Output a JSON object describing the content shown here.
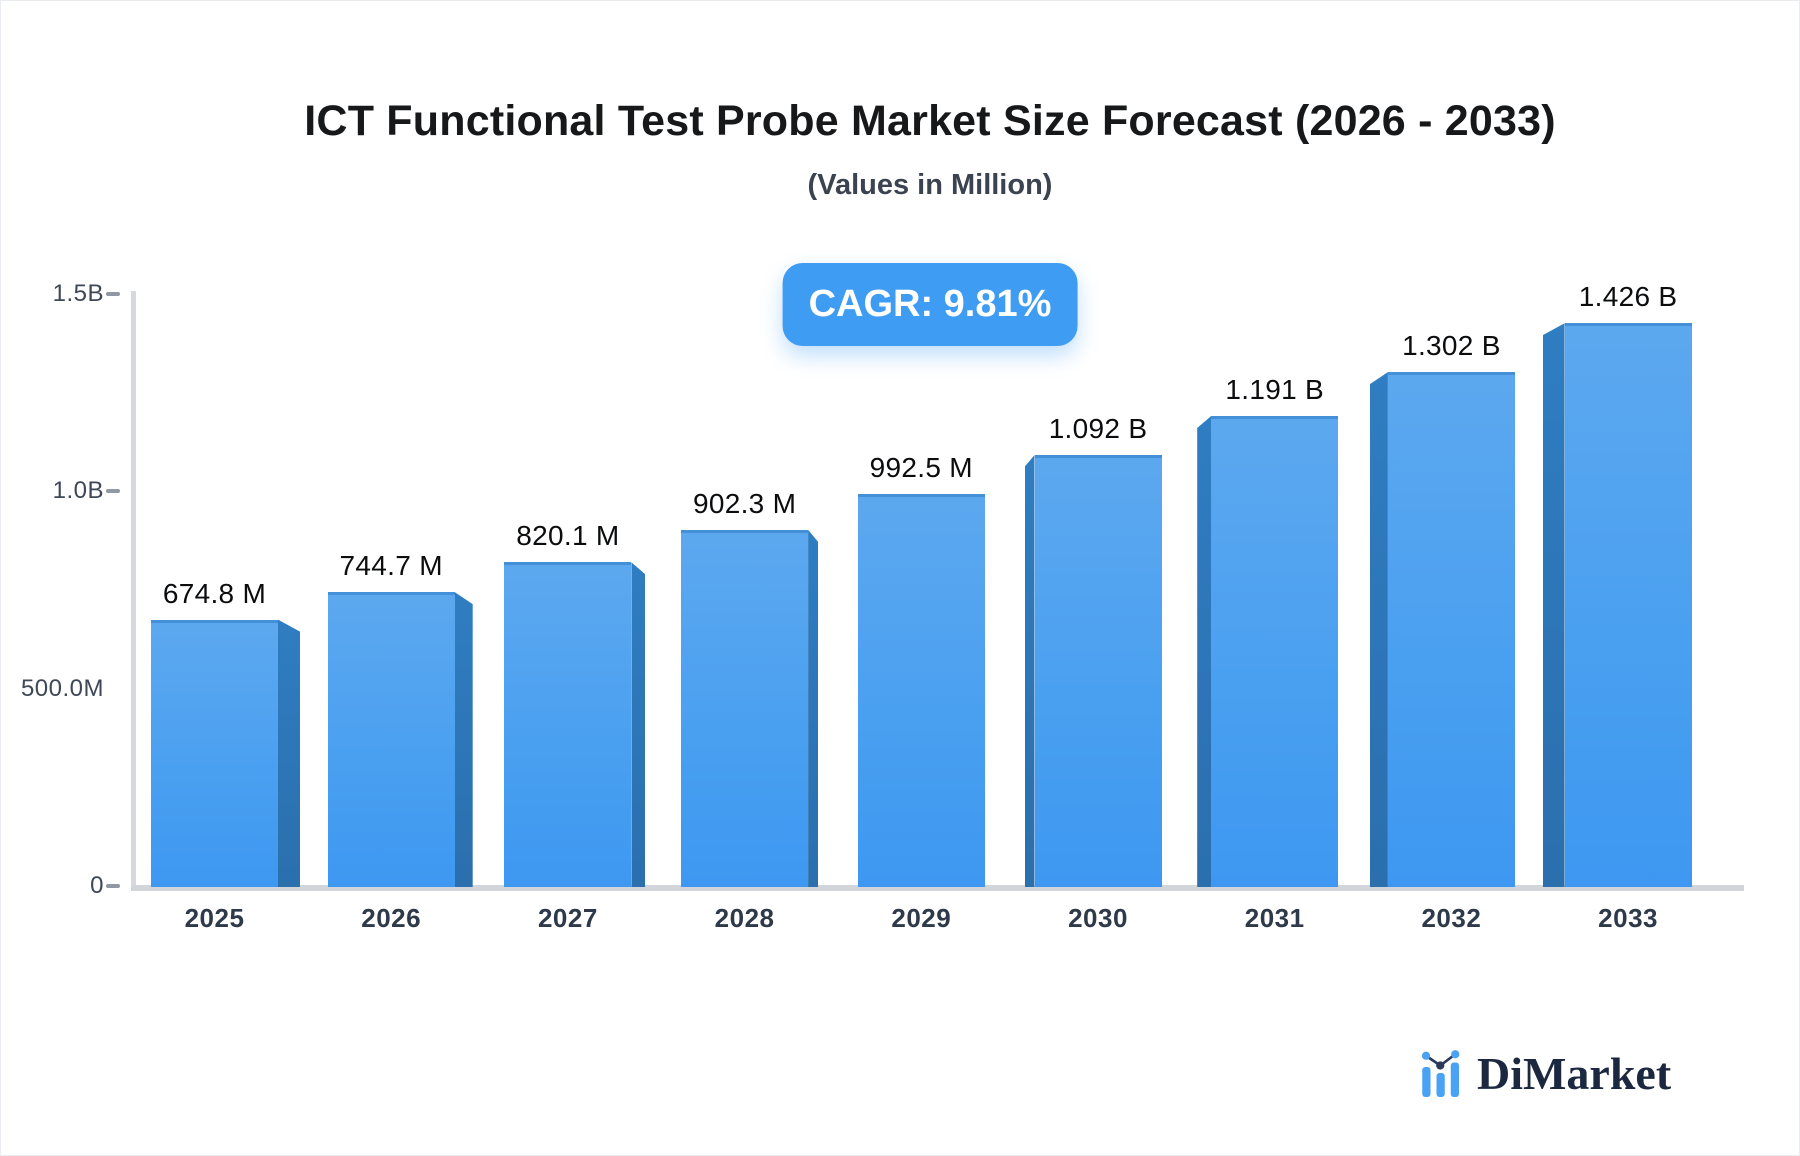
{
  "header": {
    "title": "ICT Functional Test Probe Market Size Forecast (2026 - 2033)",
    "subtitle": "(Values in Million)",
    "cagr_badge": "CAGR: 9.81%"
  },
  "chart_data": {
    "type": "bar",
    "title": "ICT Functional Test Probe Market Size Forecast (2026 - 2033)",
    "subtitle": "(Values in Million)",
    "annotation": "CAGR: 9.81%",
    "categories": [
      "2025",
      "2026",
      "2027",
      "2028",
      "2029",
      "2030",
      "2031",
      "2032",
      "2033"
    ],
    "values_million": [
      674.8,
      744.7,
      820.1,
      902.3,
      992.5,
      1092,
      1191,
      1302,
      1426
    ],
    "value_labels": [
      "674.8 M",
      "744.7 M",
      "820.1 M",
      "902.3 M",
      "992.5 M",
      "1.092 B",
      "1.191 B",
      "1.302 B",
      "1.426 B"
    ],
    "y_axis": {
      "range_million": [
        0,
        1500
      ],
      "ticks": [
        {
          "label": "1.5B",
          "value_million": 1500,
          "dash": true
        },
        {
          "label": "1.0B",
          "value_million": 1000,
          "dash": true
        },
        {
          "label": "500.0M",
          "value_million": 500,
          "dash": false
        },
        {
          "label": "0",
          "value_million": 0,
          "dash": true
        }
      ]
    },
    "legend": "none",
    "grid": "off",
    "colors": {
      "bar_face_top": "#5ca8ef",
      "bar_face_bottom": "#3e98f1",
      "bar_side": "#2f7dc2",
      "badge_background": "#3e9cf2",
      "badge_text": "#ffffff",
      "axis_line": "#d5d9de",
      "title_text": "#17181a",
      "value_label_text": "#0b0c0e"
    }
  },
  "branding": {
    "logo_text": "DiMarket",
    "logo_icon": "mini-bar-line-chart-icon",
    "logo_blue": "#4aa2f4",
    "logo_navy": "#2b3a5c"
  }
}
